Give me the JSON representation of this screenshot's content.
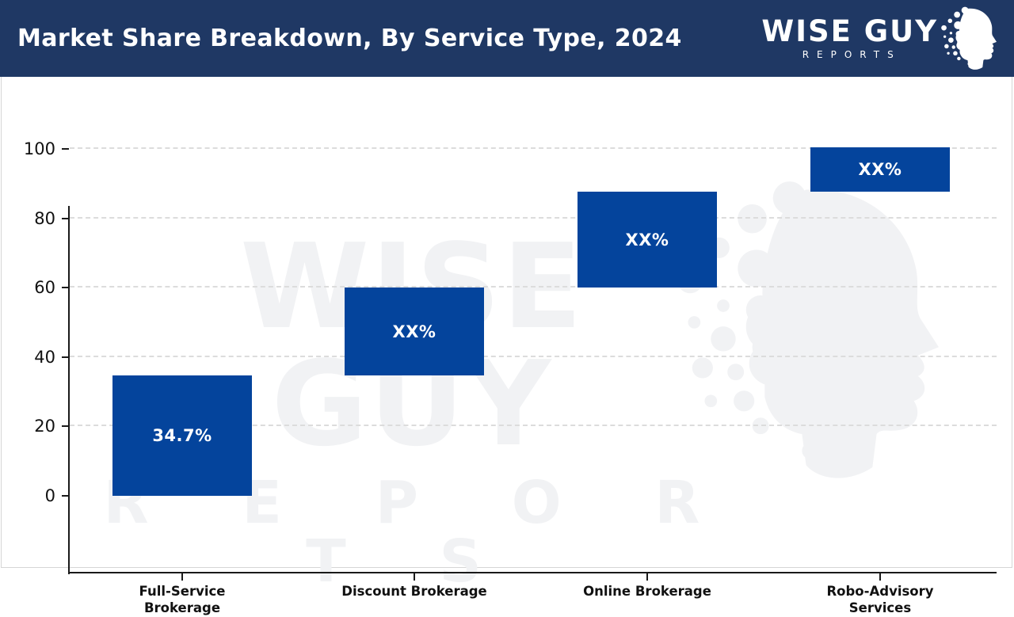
{
  "header": {
    "title": "Market Share Breakdown, By Service Type, 2024",
    "logo": {
      "name": "WISE GUY",
      "subtitle": "REPORTS"
    }
  },
  "watermark": {
    "line1": "WISE GUY",
    "line2": "R E P O R T S"
  },
  "chart_data": {
    "type": "bar",
    "variant": "waterfall-floating-bars",
    "title": "Market Share Breakdown, By Service Type, 2024",
    "categories": [
      "Full-Service\nBrokerage",
      "Discount Brokerage",
      "Online Brokerage",
      "Robo-Advisory\nServices"
    ],
    "segments": [
      [
        0,
        34.7
      ],
      [
        34.7,
        60
      ],
      [
        60,
        87.7
      ],
      [
        87.7,
        100.4
      ]
    ],
    "bar_labels": [
      "34.7%",
      "XX%",
      "XX%",
      "XX%"
    ],
    "yticks": [
      0,
      20,
      40,
      60,
      80,
      100
    ],
    "ylim": [
      0,
      105.7
    ],
    "xlabel": "",
    "ylabel": "",
    "grid": "dashed-horizontal",
    "legend": "none"
  },
  "colors": {
    "header_bg": "#1f3864",
    "bar": "#04449c",
    "bar_label": "#ffffff",
    "axis": "#1a1a1a",
    "gridline": "#dcdcdc",
    "watermark": "#f1f2f4"
  }
}
